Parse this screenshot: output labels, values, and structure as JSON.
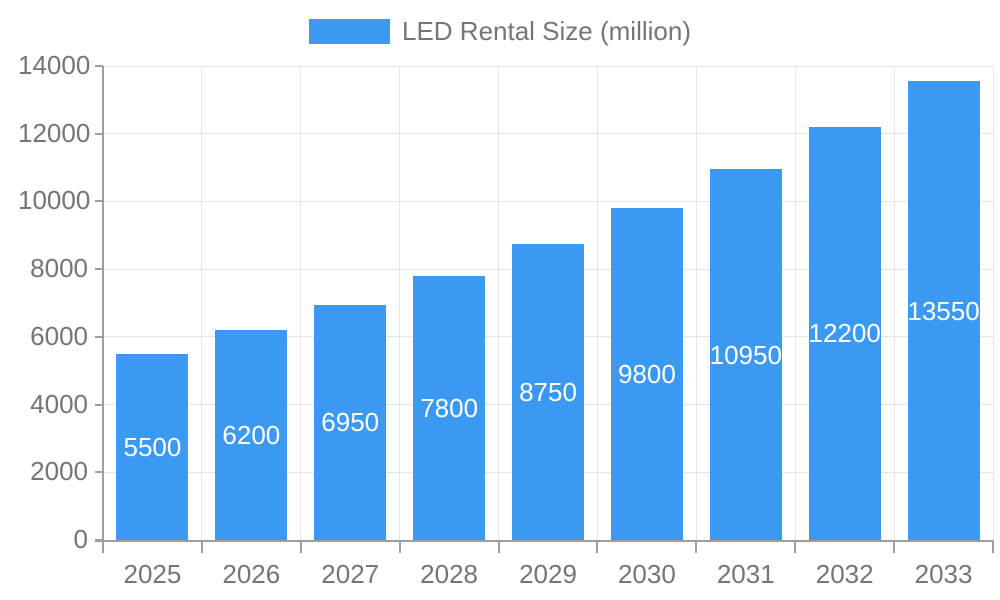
{
  "legend": {
    "label": "LED Rental Size (million)",
    "swatch_color": "#3b99f1"
  },
  "chart_data": {
    "type": "bar",
    "title": "LED Rental Size (million)",
    "categories": [
      "2025",
      "2026",
      "2027",
      "2028",
      "2029",
      "2030",
      "2031",
      "2032",
      "2033"
    ],
    "series": [
      {
        "name": "LED Rental Size (million)",
        "values": [
          5500,
          6200,
          6950,
          7800,
          8750,
          9800,
          10950,
          12200,
          13550
        ]
      }
    ],
    "xlabel": "",
    "ylabel": "",
    "ylim": [
      0,
      14000
    ],
    "y_ticks": [
      0,
      2000,
      4000,
      6000,
      8000,
      10000,
      12000,
      14000
    ],
    "y_tick_labels": [
      "0",
      "2000",
      "4000",
      "6000",
      "8000",
      "10000",
      "12000",
      "14000"
    ],
    "grid": true,
    "legend_position": "top-center",
    "bar_labels_inside": true,
    "colors": {
      "bar": "#3b99f1",
      "bar_label": "#ffffff",
      "axis_line": "#9e9e9e",
      "gridline": "#e6e6e6",
      "tick_label": "#757575",
      "legend_text": "#757575",
      "background": "#ffffff"
    }
  }
}
